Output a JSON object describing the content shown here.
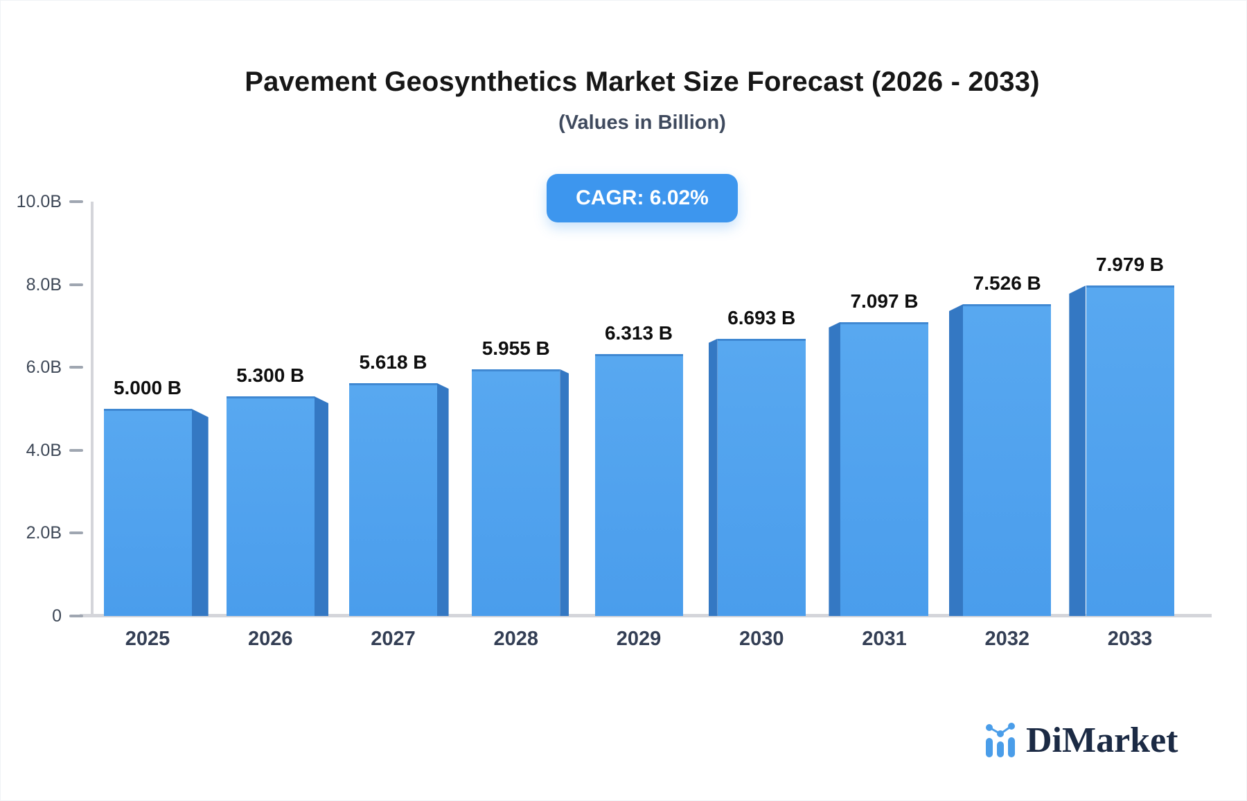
{
  "chart_data": {
    "type": "bar",
    "title": "Pavement Geosynthetics Market Size Forecast (2026 - 2033)",
    "subtitle": "(Values in Billion)",
    "annotation": "CAGR: 6.02%",
    "categories": [
      "2025",
      "2026",
      "2027",
      "2028",
      "2029",
      "2030",
      "2031",
      "2032",
      "2033"
    ],
    "values": [
      5.0,
      5.3,
      5.618,
      5.955,
      6.313,
      6.693,
      7.097,
      7.526,
      7.979
    ],
    "value_labels": [
      "5.000 B",
      "5.300 B",
      "5.618 B",
      "5.955 B",
      "6.313 B",
      "6.693 B",
      "7.097 B",
      "7.526 B",
      "7.979 B"
    ],
    "xlabel": "",
    "ylabel": "",
    "ylim": [
      0,
      10
    ],
    "y_ticks": [
      {
        "label": "10.0B",
        "value": 10
      },
      {
        "label": "8.0B",
        "value": 8
      },
      {
        "label": "6.0B",
        "value": 6
      },
      {
        "label": "4.0B",
        "value": 4
      },
      {
        "label": "2.0B",
        "value": 2
      },
      {
        "label": "0",
        "value": 0
      }
    ],
    "grid": false,
    "legend": false,
    "colors": {
      "bar_face": "#4a9dec",
      "bar_face_top": "#58a8f0",
      "bar_side": "#3478c3",
      "bar_edge": "#3f88d2",
      "badge": "#3d96ee",
      "axis_line": "#d4d5da",
      "tick_dash": "#9fa6b1",
      "axis_text": "#3e4857",
      "year_text": "#333e54"
    }
  },
  "branding": {
    "name": "DiMarket",
    "icon_color": "#4a9de9",
    "text_color": "#1b2a44"
  }
}
